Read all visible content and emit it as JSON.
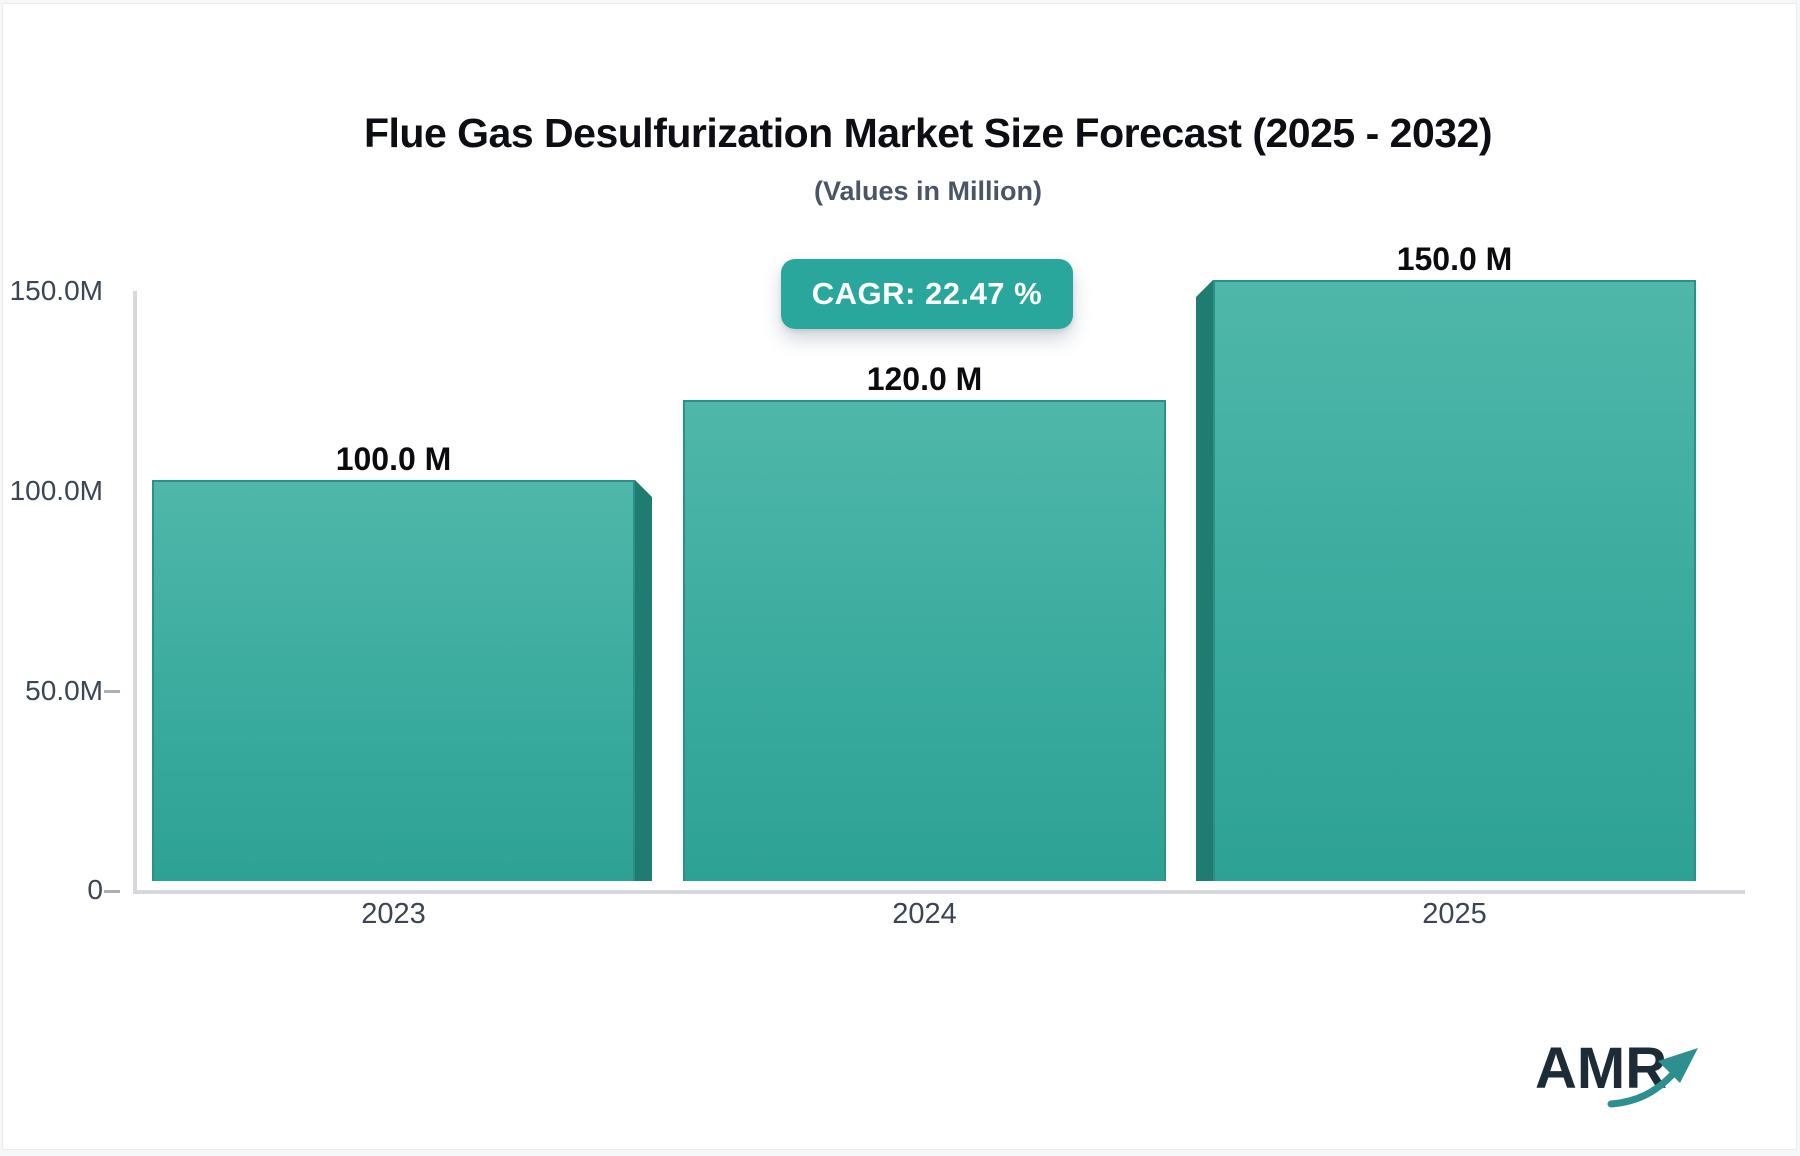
{
  "chart_data": {
    "type": "bar",
    "title": "Flue Gas Desulfurization Market Size Forecast (2025 - 2032)",
    "subtitle": "(Values in Million)",
    "categories": [
      "2023",
      "2024",
      "2025"
    ],
    "values": [
      100.0,
      120.0,
      150.0
    ],
    "value_labels": [
      "100.0 M",
      "120.0 M",
      "150.0 M"
    ],
    "unit": "Million",
    "ylim": [
      0,
      150
    ],
    "y_tick_labels": [
      "150.0M",
      "100.0M",
      "50.0M",
      "0"
    ],
    "legend": "none",
    "grid": "off"
  },
  "badge": {
    "label": "CAGR: 22.47 %"
  },
  "logo": {
    "text": "AMR"
  },
  "colors": {
    "accent_teal": "#2aa79c",
    "bar_top": "#4fb7aa",
    "bar_bottom": "#2ea195",
    "bar_side": "#1e7c70",
    "axis_gray": "#d6d8dd",
    "title_text": "#0d0e13",
    "subtitle_text": "#4a5565",
    "tick_text": "#3b4554",
    "logo_navy": "#1c2b36",
    "arrow_teal": "#2e8f90"
  }
}
